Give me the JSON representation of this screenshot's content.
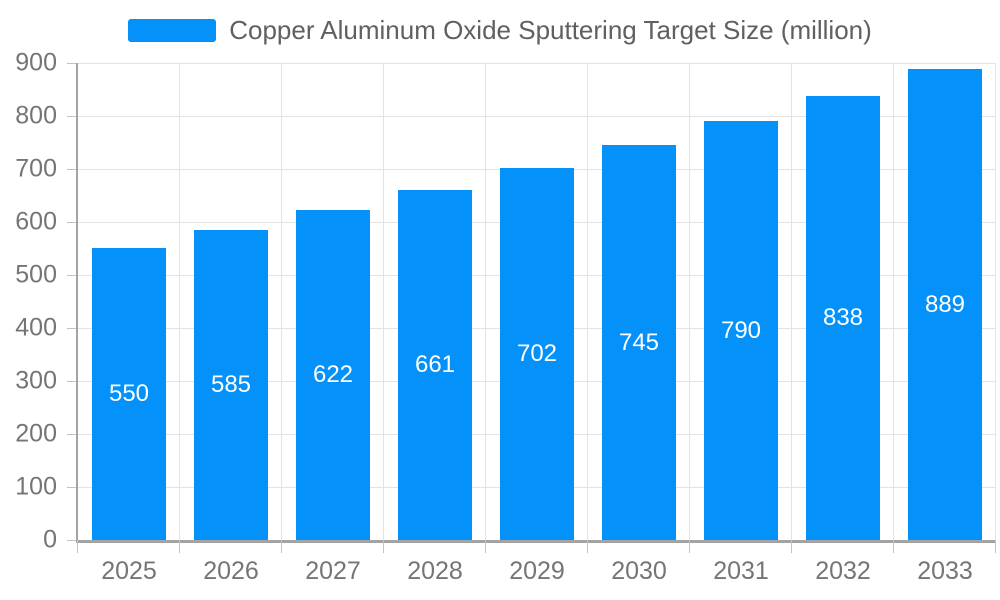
{
  "chart_data": {
    "type": "bar",
    "title": "Copper Aluminum Oxide Sputtering Target Size (million)",
    "xlabel": "",
    "ylabel": "",
    "categories": [
      "2025",
      "2026",
      "2027",
      "2028",
      "2029",
      "2030",
      "2031",
      "2032",
      "2033"
    ],
    "values": [
      550,
      585,
      622,
      661,
      702,
      745,
      790,
      838,
      889
    ],
    "series": [
      {
        "name": "Copper Aluminum Oxide Sputtering Target Size (million)",
        "values": [
          550,
          585,
          622,
          661,
          702,
          745,
          790,
          838,
          889
        ]
      }
    ],
    "ylim": [
      0,
      900
    ],
    "ytick_step": 100,
    "yticks": [
      0,
      100,
      200,
      300,
      400,
      500,
      600,
      700,
      800,
      900
    ],
    "grid": true,
    "legend_position": "top-center",
    "value_labels": "inside-center",
    "colors": {
      "bar": "#0591FA",
      "value_label": "#ffffff",
      "gridline": "#e3e3e3",
      "axis_line": "#a3a3a3",
      "tick": "#c2c2c2",
      "axis_label": "#757575",
      "legend_text": "#606060",
      "background": "#ffffff"
    }
  }
}
